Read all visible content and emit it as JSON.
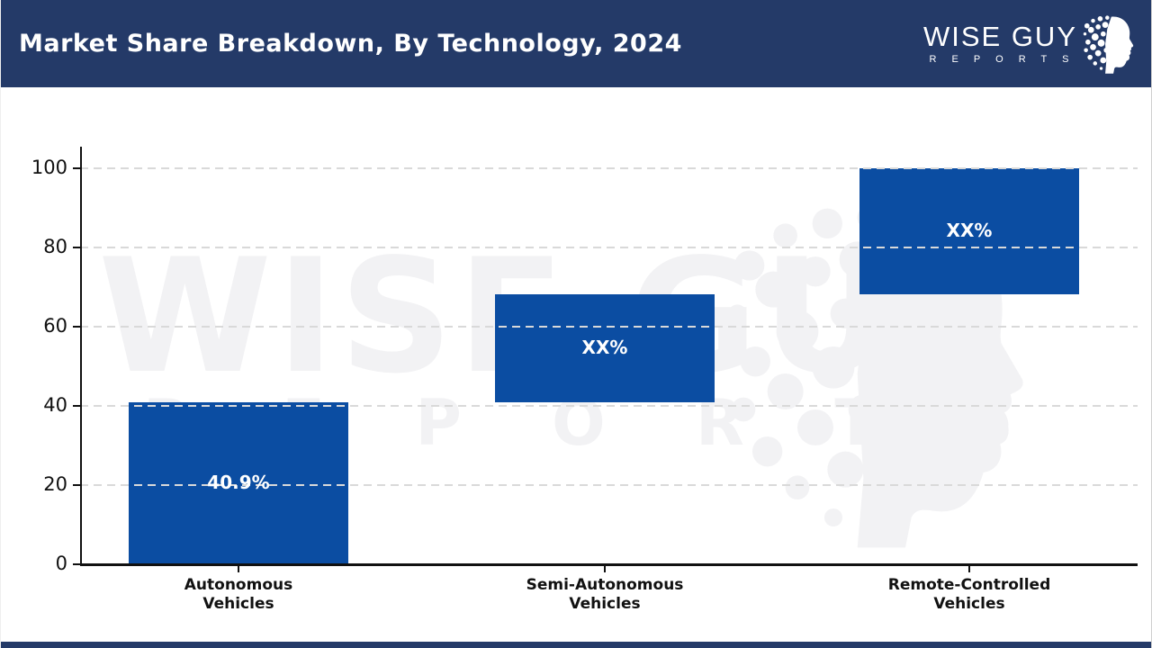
{
  "header": {
    "title": "Market Share Breakdown, By Technology, 2024"
  },
  "logo": {
    "name": "WISE GUY",
    "sub": "R E P O R T S"
  },
  "watermark": {
    "line1": "WISE GUY",
    "line2": "R E P O R T S"
  },
  "colors": {
    "header_bg": "#243A68",
    "footer_bg": "#243A68",
    "bar": "#0B4DA2",
    "bar_label": "#FFFFFF",
    "grid": "#D9D9D9",
    "axis": "#111111",
    "watermark": "#F2F2F4"
  },
  "chart_data": {
    "type": "bar",
    "subtype": "waterfall",
    "title": "Market Share Breakdown, By Technology, 2024",
    "categories": [
      [
        "Autonomous",
        "Vehicles"
      ],
      [
        "Semi-Autonomous",
        "Vehicles"
      ],
      [
        "Remote-Controlled",
        "Vehicles"
      ]
    ],
    "segments": [
      {
        "label": "40.9%",
        "start": 0,
        "end": 40.9
      },
      {
        "label": "XX%",
        "start": 40.9,
        "end": 68.2
      },
      {
        "label": "XX%",
        "start": 68.2,
        "end": 100
      }
    ],
    "yticks": [
      0,
      20,
      40,
      60,
      80,
      100
    ],
    "ylim": [
      0,
      100
    ],
    "grid": "dashed-horizontal",
    "legend": "none"
  }
}
